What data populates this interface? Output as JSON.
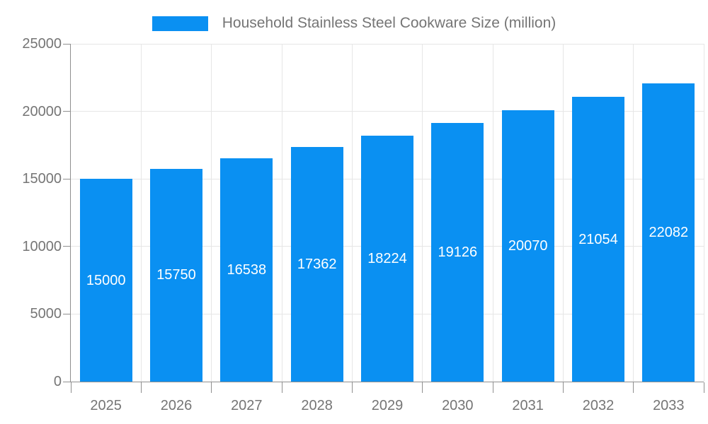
{
  "chart_data": {
    "type": "bar",
    "title": "Household Stainless Steel Cookware Size (million)",
    "categories": [
      "2025",
      "2026",
      "2027",
      "2028",
      "2029",
      "2030",
      "2031",
      "2032",
      "2033"
    ],
    "values": [
      15000,
      15750,
      16538,
      17362,
      18224,
      19126,
      20070,
      21054,
      22082
    ],
    "xlabel": "",
    "ylabel": "",
    "ylim": [
      0,
      25000
    ],
    "yticks": [
      0,
      5000,
      10000,
      15000,
      20000,
      25000
    ],
    "grid": true,
    "legend_position": "top-center",
    "value_labels_position": "inside-center",
    "colors": {
      "bar": "#0a90f2",
      "axis_text": "#757575",
      "value_label_text": "#ffffff",
      "gridline": "#e6e6e6",
      "axis_line": "#8f8f8f",
      "background": "#ffffff"
    }
  }
}
